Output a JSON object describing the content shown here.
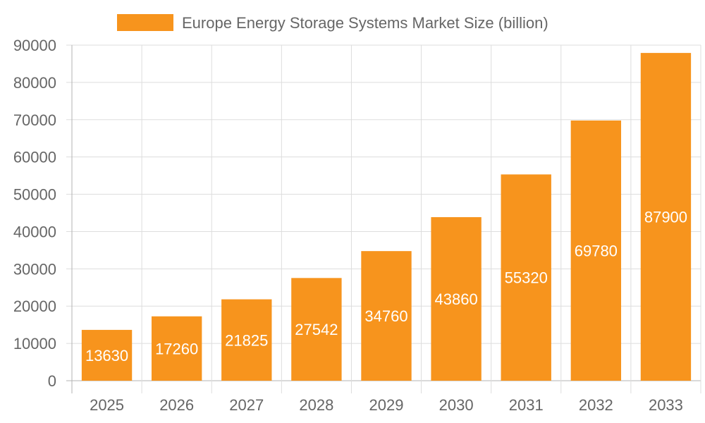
{
  "legend": {
    "label": "Europe Energy Storage Systems Market Size (billion)",
    "swatch_color": "#F7941D"
  },
  "colors": {
    "bar": "#F7941D",
    "grid": "#DDDDDD",
    "axis": "#B3B3B3",
    "text": "#666666",
    "data_label": "#FFFFFF"
  },
  "chart_data": {
    "type": "bar",
    "categories": [
      "2025",
      "2026",
      "2027",
      "2028",
      "2029",
      "2030",
      "2031",
      "2032",
      "2033"
    ],
    "series": [
      {
        "name": "Europe Energy Storage Systems Market Size (billion)",
        "values": [
          13630,
          17260,
          21825,
          27542,
          34760,
          43860,
          55320,
          69780,
          87900
        ]
      }
    ],
    "ylim": [
      0,
      90000
    ],
    "yticks": [
      0,
      10000,
      20000,
      30000,
      40000,
      50000,
      60000,
      70000,
      80000,
      90000
    ],
    "grid": true,
    "legend_position": "top",
    "data_labels": true
  }
}
